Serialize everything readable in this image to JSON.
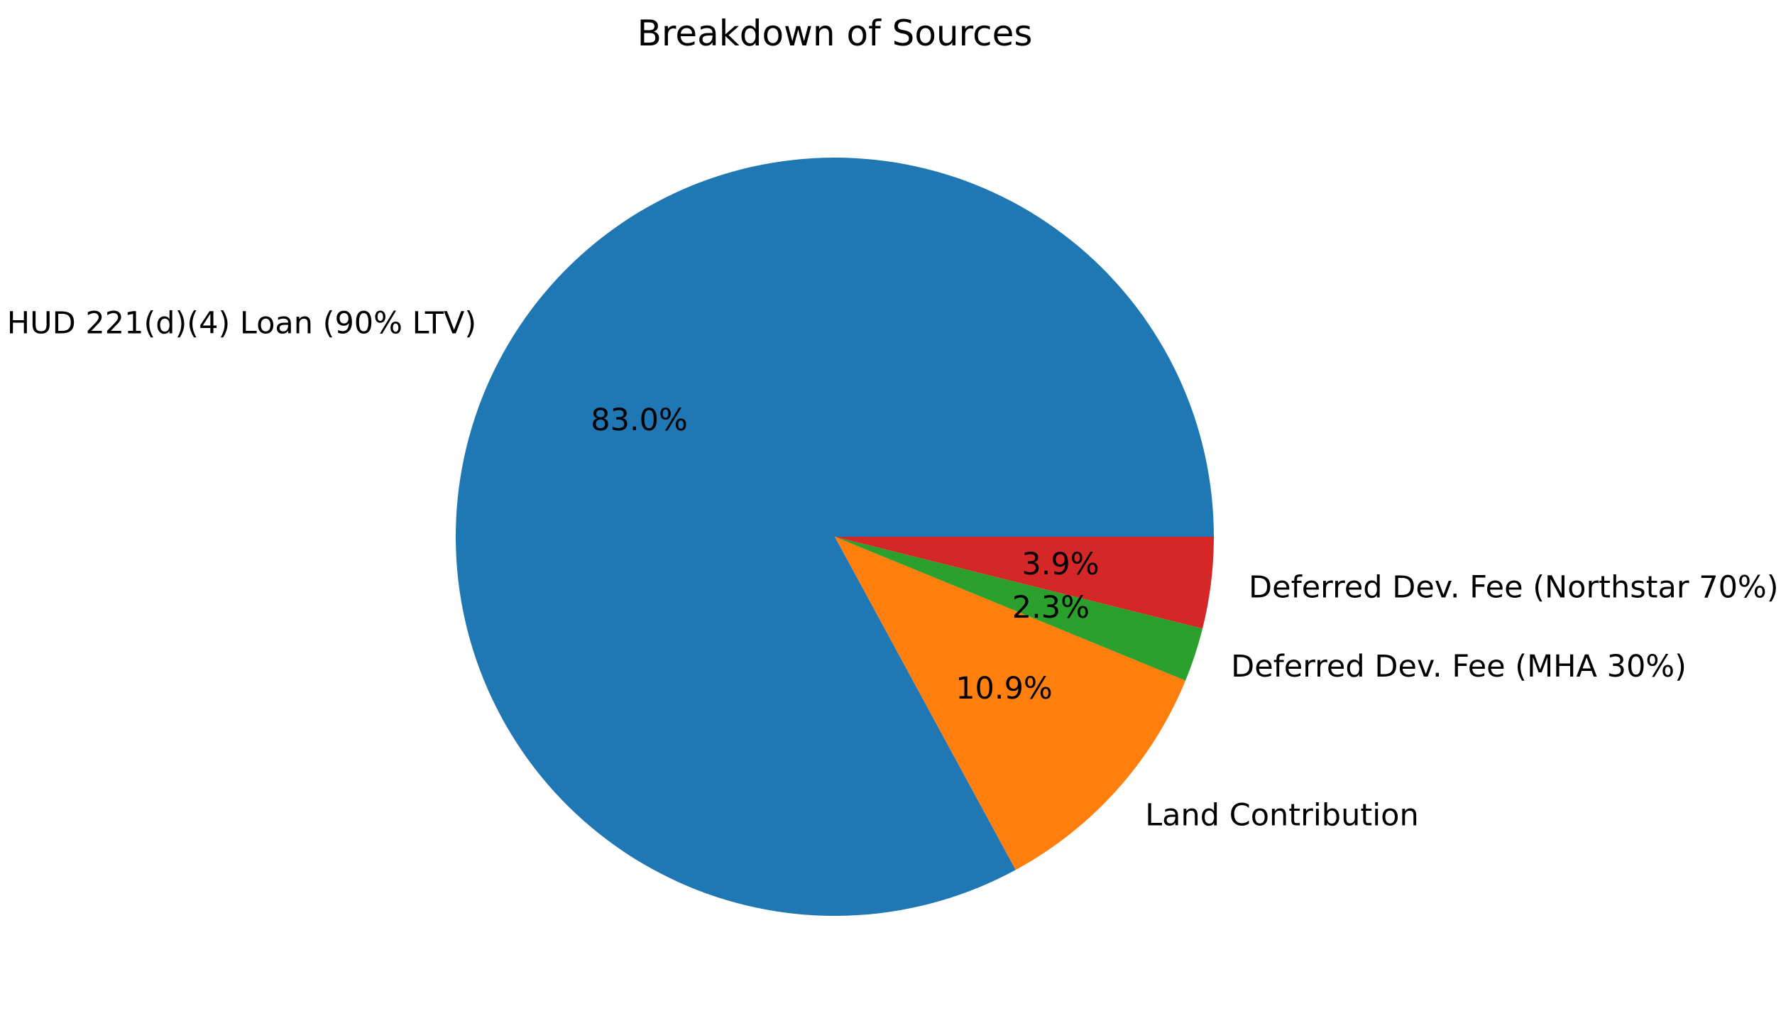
{
  "chart_data": {
    "type": "pie",
    "title": "Breakdown of Sources",
    "labels": [
      "HUD 221(d)(4) Loan (90% LTV)",
      "Land Contribution",
      "Deferred Dev. Fee (MHA 30%)",
      "Deferred Dev. Fee (Northstar 70%)"
    ],
    "values": [
      83.0,
      10.9,
      2.3,
      3.9
    ],
    "pct_labels": [
      "83.0%",
      "10.9%",
      "2.3%",
      "3.9%"
    ],
    "colors": [
      "#1f77b4",
      "#ff7f0e",
      "#2ca02c",
      "#d62728"
    ],
    "startangle": 0,
    "counterclock": true,
    "legend": "none",
    "grid": false,
    "background": "#ffffff",
    "text_color": "#000000"
  }
}
